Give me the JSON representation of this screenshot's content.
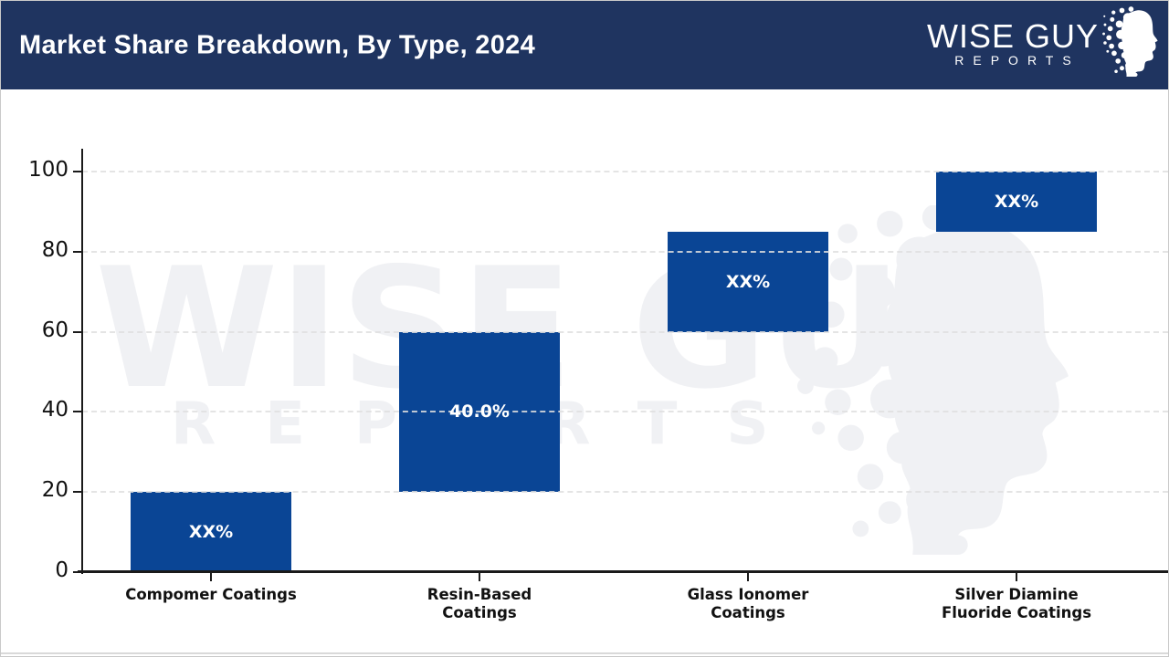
{
  "header": {
    "title": "Market Share Breakdown, By Type, 2024",
    "logo": {
      "line1": "WISE GUY",
      "line2": "REPORTS"
    }
  },
  "watermark": {
    "line1": "WISE GUY",
    "line2": "REPORTS"
  },
  "colors": {
    "header_bg": "#1f3460",
    "header_text": "#ffffff",
    "watermark": "#f0f1f4",
    "figure_border": "#c9c9c9"
  },
  "chart_data": {
    "type": "bar",
    "variant": "waterfall",
    "title": "Market Share Breakdown, By Type, 2024",
    "categories": [
      "Compomer Coatings",
      "Resin-Based Coatings",
      "Glass Ionomer Coatings",
      "Silver Diamine Fluoride Coatings"
    ],
    "category_lines": [
      [
        "Compomer Coatings"
      ],
      [
        "Resin-Based",
        "Coatings"
      ],
      [
        "Glass Ionomer",
        "Coatings"
      ],
      [
        "Silver Diamine",
        "Fluoride Coatings"
      ]
    ],
    "series": [
      {
        "name": "Market Share (%)",
        "base": [
          0,
          20,
          60,
          85
        ],
        "values": [
          20,
          40,
          25,
          15
        ],
        "labels": [
          "XX%",
          "40.0%",
          "XX%",
          "XX%"
        ]
      }
    ],
    "ylim": [
      0,
      100
    ],
    "yticks": [
      0,
      20,
      40,
      60,
      80,
      100
    ],
    "xlabel": "",
    "ylabel": "",
    "grid": "horizontal-dashed-over-bars",
    "legend": "none",
    "colors": {
      "bar": "#0a4595",
      "grid": "rgba(223,223,223,0.85)",
      "axis": "#1a1a1a",
      "bar_label_text": "#ffffff",
      "tick_text": "#111111"
    }
  }
}
